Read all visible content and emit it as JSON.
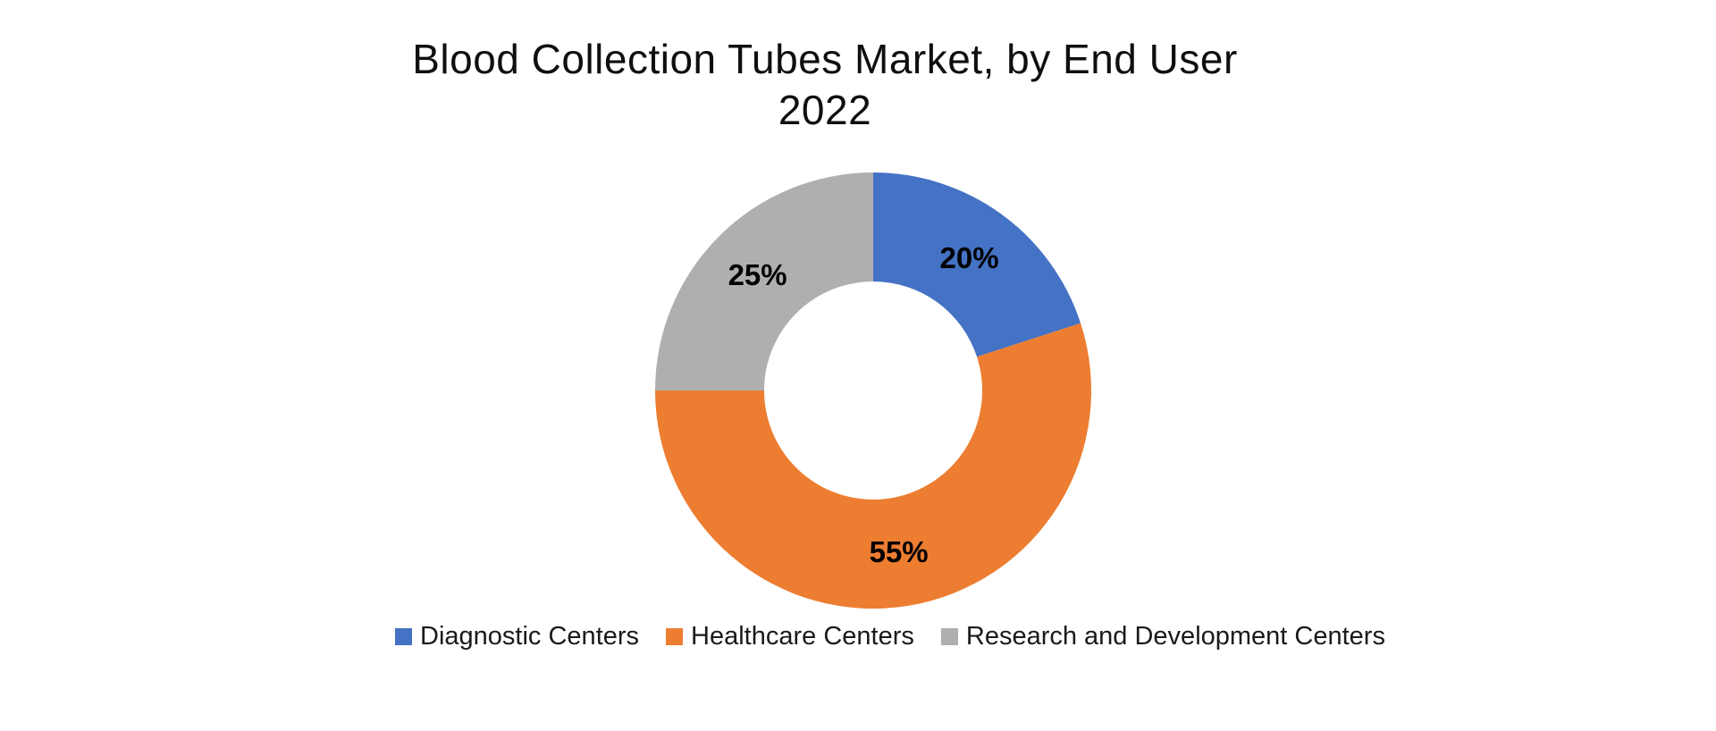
{
  "title": {
    "line1": "Blood Collection Tubes Market, by End User",
    "line2": "2022"
  },
  "background_color": "#FFFFFF",
  "chart_data": {
    "type": "pie",
    "subtype": "donut",
    "title": "Blood Collection Tubes Market, by End User 2022",
    "categories": [
      "Diagnostic Centers",
      "Healthcare Centers",
      "Research and Development Centers"
    ],
    "values": [
      20,
      55,
      25
    ],
    "unit": "%",
    "slices": [
      {
        "label": "Diagnostic Centers",
        "value": 20,
        "percent_label": "20%",
        "color": "#4472C4"
      },
      {
        "label": "Healthcare Centers",
        "value": 55,
        "percent_label": "55%",
        "color": "#ED7D31"
      },
      {
        "label": "Research and Development Centers",
        "value": 25,
        "percent_label": "25%",
        "color": "#AFAFAF"
      }
    ],
    "start_angle_deg": 0,
    "direction": "clockwise",
    "donut_hole_ratio": 0.5,
    "legend_position": "bottom",
    "data_label_color": "#000000",
    "grid": false
  }
}
